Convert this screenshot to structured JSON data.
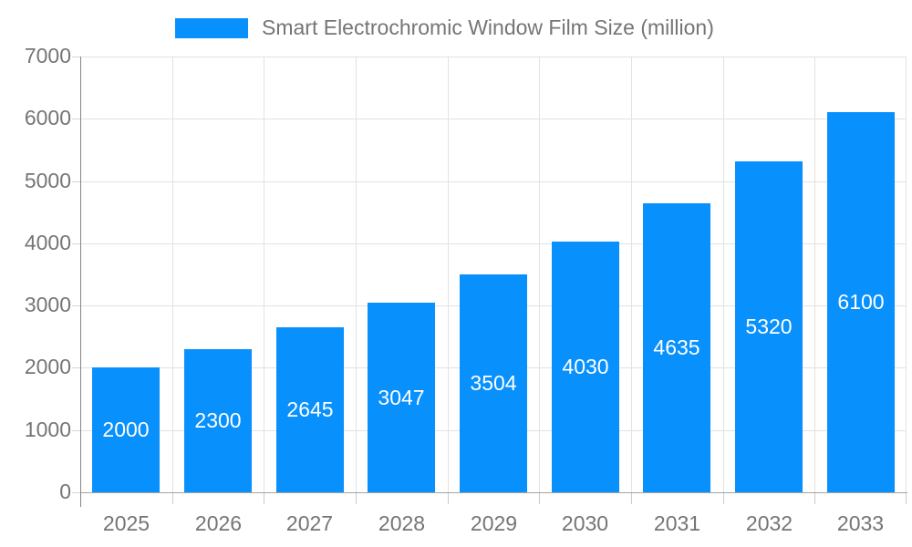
{
  "legend": {
    "label": "Smart Electrochromic Window Film Size (million)",
    "swatch_color": "#0890fc"
  },
  "chart_data": {
    "type": "bar",
    "title": "Smart Electrochromic Window Film Size (million)",
    "categories": [
      "2025",
      "2026",
      "2027",
      "2028",
      "2029",
      "2030",
      "2031",
      "2032",
      "2033"
    ],
    "values": [
      2000,
      2300,
      2645,
      3047,
      3504,
      4030,
      4635,
      5320,
      6100
    ],
    "xlabel": "",
    "ylabel": "",
    "ylim": [
      0,
      7000
    ],
    "yticks": [
      0,
      1000,
      2000,
      3000,
      4000,
      5000,
      6000,
      7000
    ],
    "grid": true,
    "legend_position": "top",
    "bar_color": "#0890fc",
    "bar_label_color": "#ffffff",
    "axis_text_color": "#757575"
  }
}
